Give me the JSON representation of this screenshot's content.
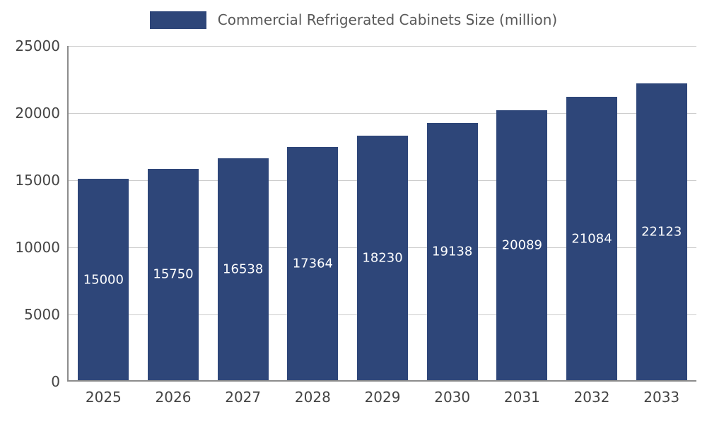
{
  "colors": {
    "bar": "#2E4679",
    "grid": "#cccccc",
    "axis": "#8c8c8c",
    "tick_text": "#444444",
    "legend_text": "#595959",
    "value_text": "#ffffff"
  },
  "legend": {
    "label": "Commercial Refrigerated Cabinets Size (million)"
  },
  "chart_data": {
    "type": "bar",
    "title": "Commercial Refrigerated Cabinets Size (million)",
    "categories": [
      "2025",
      "2026",
      "2027",
      "2028",
      "2029",
      "2030",
      "2031",
      "2032",
      "2033"
    ],
    "values": [
      15000,
      15750,
      16538,
      17364,
      18230,
      19138,
      20089,
      21084,
      22123
    ],
    "value_labels": [
      "15000",
      "15750",
      "16538",
      "17364",
      "18230",
      "19138",
      "20089",
      "21084",
      "22123"
    ],
    "xlabel": "",
    "ylabel": "",
    "ylim": [
      0,
      25000
    ],
    "yticks": [
      0,
      5000,
      10000,
      15000,
      20000,
      25000
    ],
    "ytick_labels": [
      "0",
      "5000",
      "10000",
      "15000",
      "20000",
      "25000"
    ],
    "grid": "horizontal",
    "legend_position": "top-center"
  }
}
